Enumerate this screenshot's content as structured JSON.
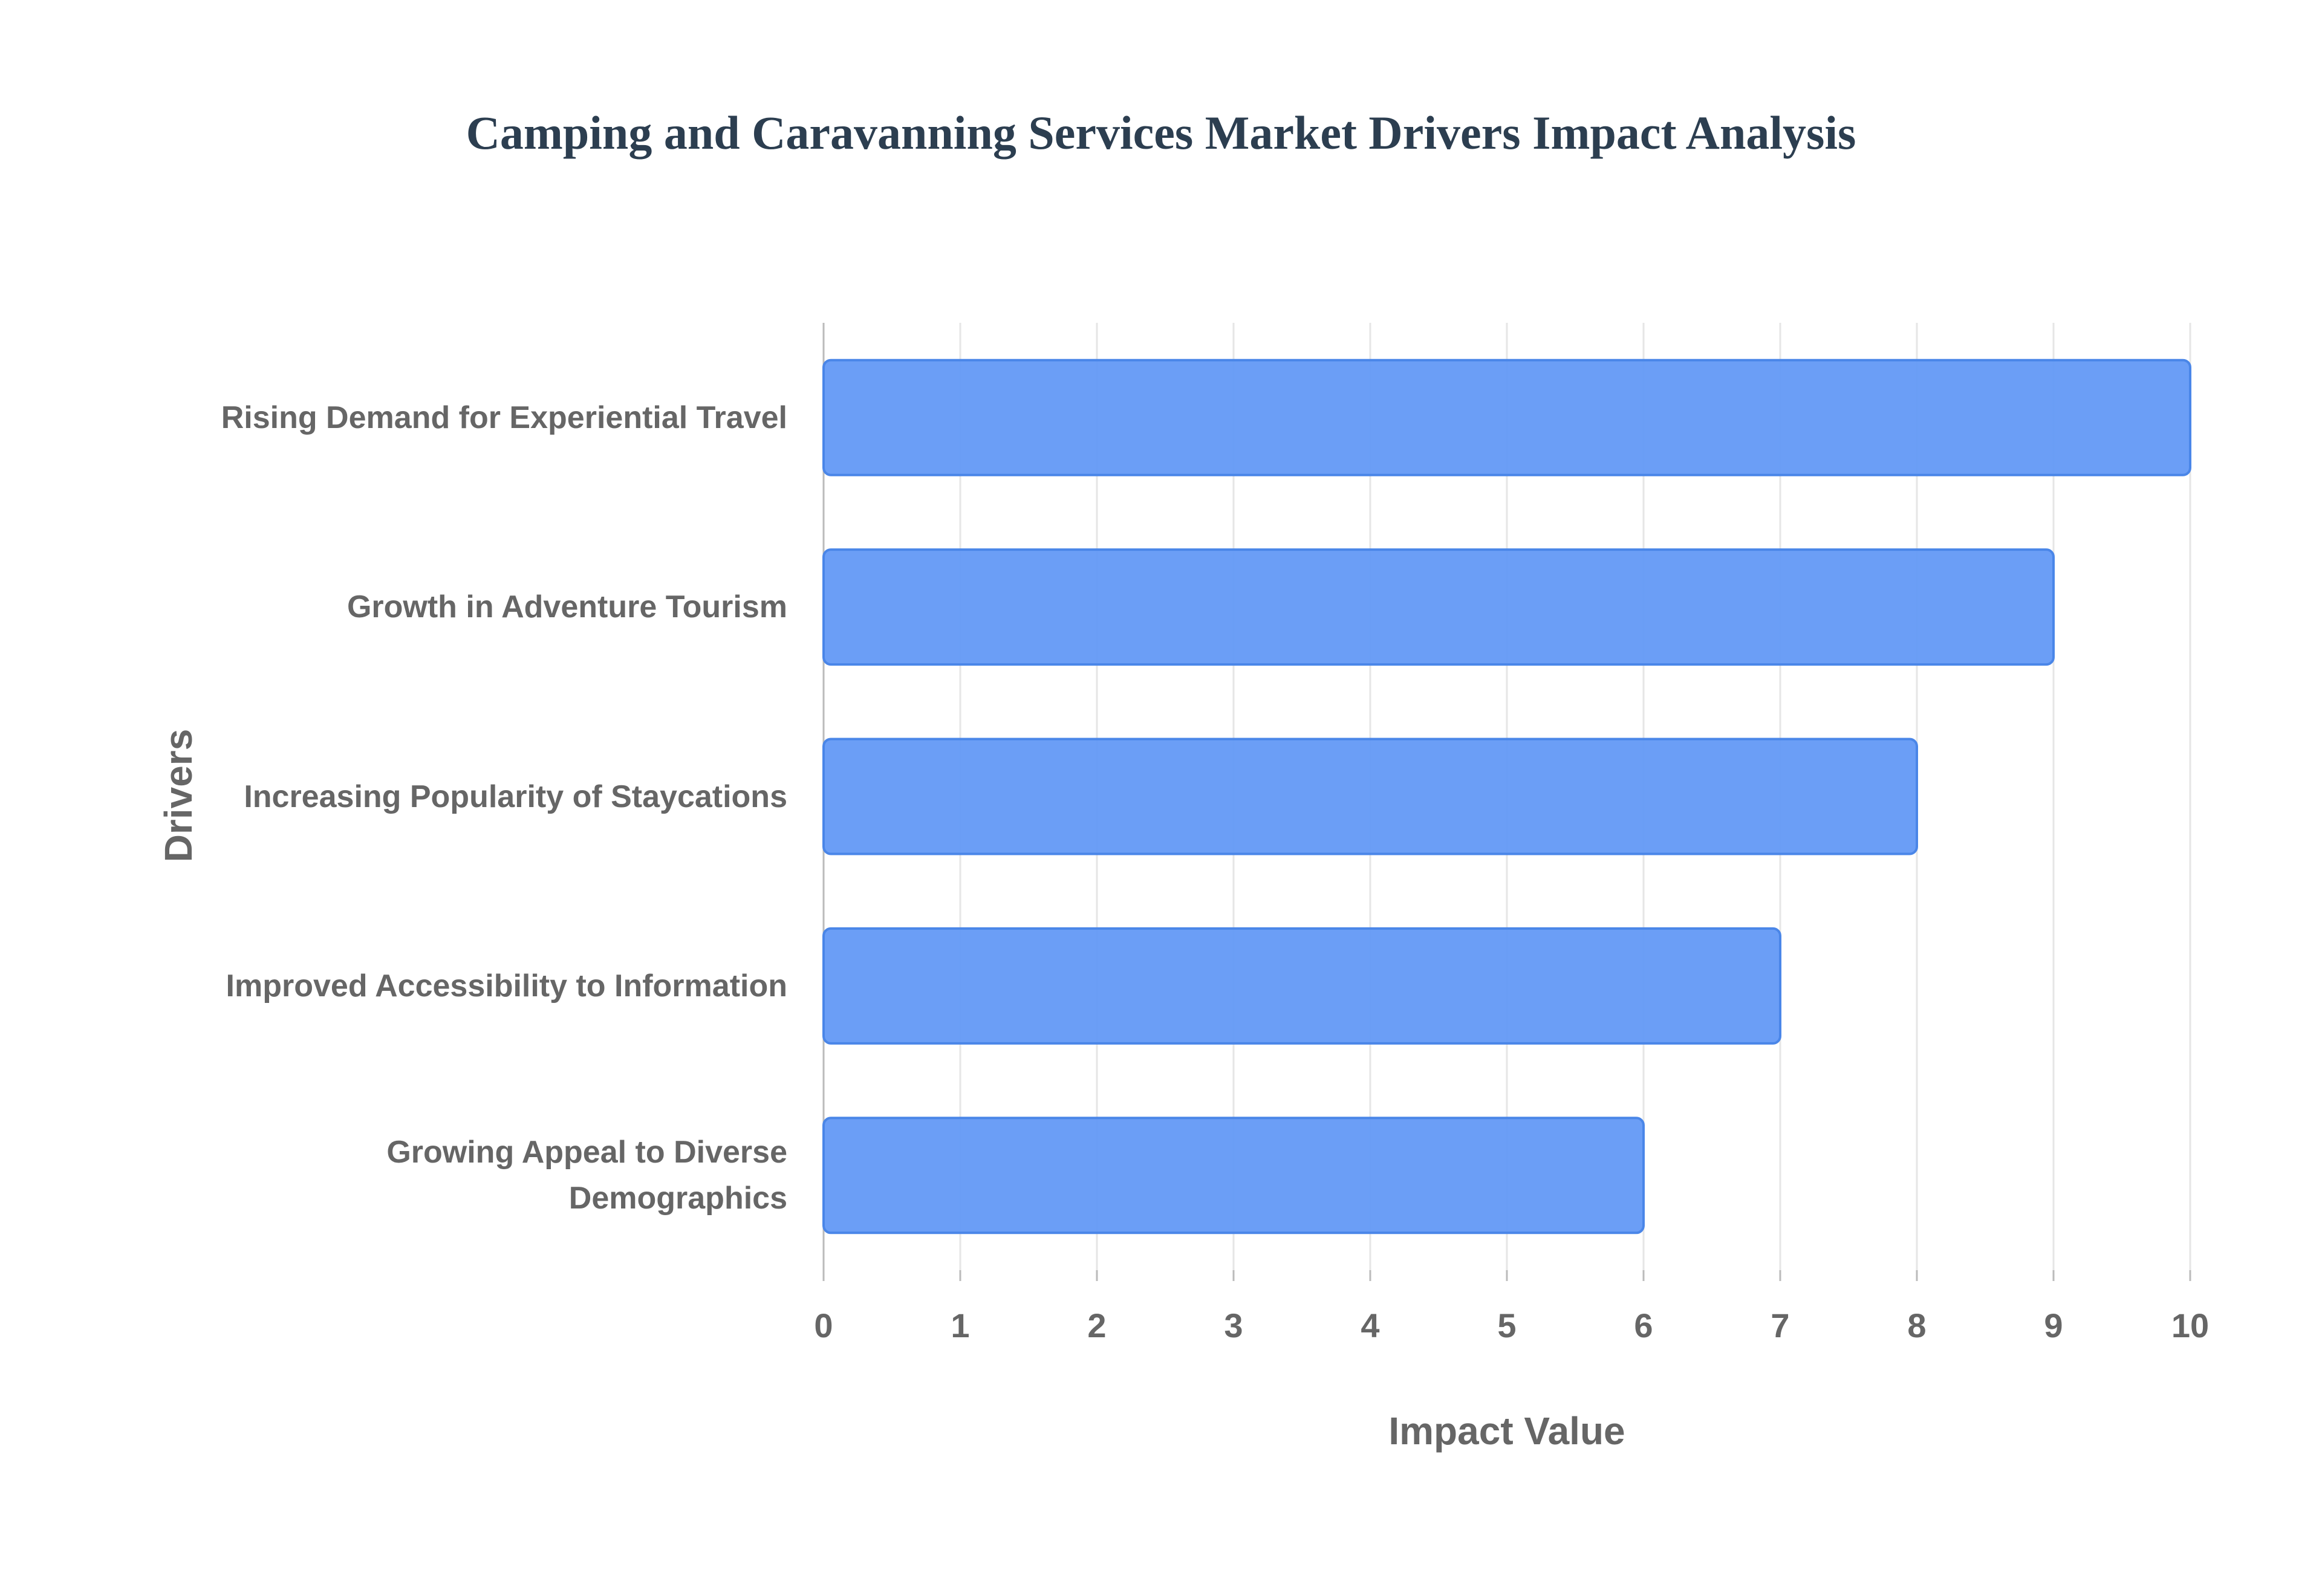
{
  "chart_data": {
    "type": "hbar",
    "title": "Camping and Caravanning Services Market Drivers Impact Analysis",
    "x_label": "Impact Value",
    "y_label": "Drivers",
    "categories": [
      "Rising Demand for Experiential Travel",
      "Growth in Adventure Tourism",
      "Increasing Popularity of Staycations",
      "Improved Accessibility to Information",
      "Growing Appeal to Diverse Demographics"
    ],
    "values": [
      10,
      9,
      8,
      7,
      6
    ],
    "color": "#6399f6",
    "xlim": [
      0,
      10
    ],
    "xticks": [
      0,
      1,
      2,
      3,
      4,
      5,
      6,
      7,
      8,
      9,
      10
    ],
    "grid": true
  }
}
